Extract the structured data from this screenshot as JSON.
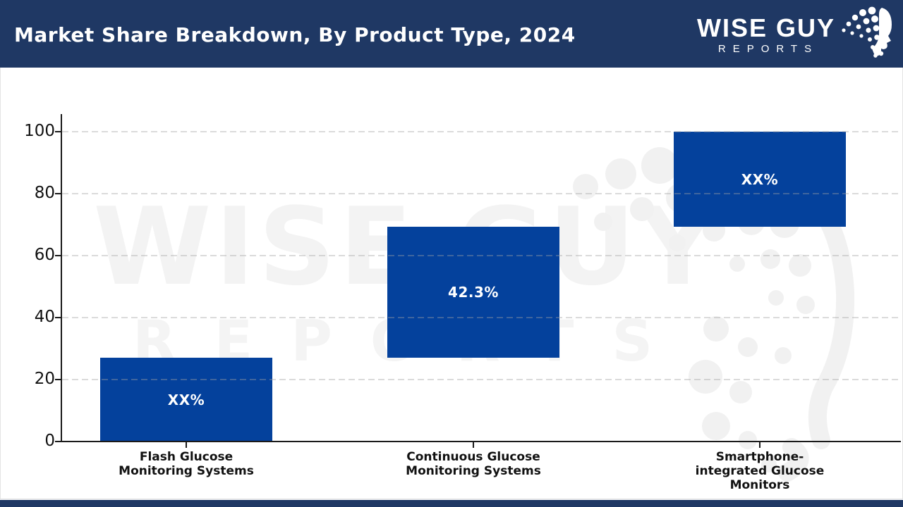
{
  "header": {
    "title": "Market Share Breakdown, By Product Type, 2024",
    "logo": {
      "line1": "WISE GUY",
      "line2": "REPORTS"
    }
  },
  "watermark": {
    "line1": "WISE GUY",
    "line2": "REPORTS"
  },
  "chart_data": {
    "type": "bar",
    "subtype": "floating-waterfall-segments",
    "title": "Market Share Breakdown, By Product Type, 2024",
    "categories": [
      "Flash Glucose\nMonitoring Systems",
      "Continuous Glucose\nMonitoring Systems",
      "Smartphone-\nintegrated Glucose\nMonitors"
    ],
    "bars": [
      {
        "category": "Flash Glucose\nMonitoring Systems",
        "base": 0,
        "top": 27,
        "height": 27,
        "value_label": "XX%"
      },
      {
        "category": "Continuous Glucose\nMonitoring Systems",
        "base": 27,
        "top": 69.3,
        "height": 42.3,
        "value_label": "42.3%"
      },
      {
        "category": "Smartphone-\nintegrated Glucose\nMonitors",
        "base": 69.3,
        "top": 100,
        "height": 30.7,
        "value_label": "XX%"
      }
    ],
    "y_ticks": [
      0,
      20,
      40,
      60,
      80,
      100
    ],
    "ylim": [
      0,
      105
    ],
    "xlabel": "",
    "ylabel": "",
    "grid": "horizontal-dashed",
    "legend": "none",
    "bar_color": "#04419c",
    "bar_label_color": "#ffffff",
    "gridline_color": "#d9d9d9",
    "axis_color": "#1a1a1a"
  },
  "colors": {
    "header_bg": "#1f3864",
    "footer_bg": "#1f3864",
    "watermark": "#f3f3f3"
  }
}
